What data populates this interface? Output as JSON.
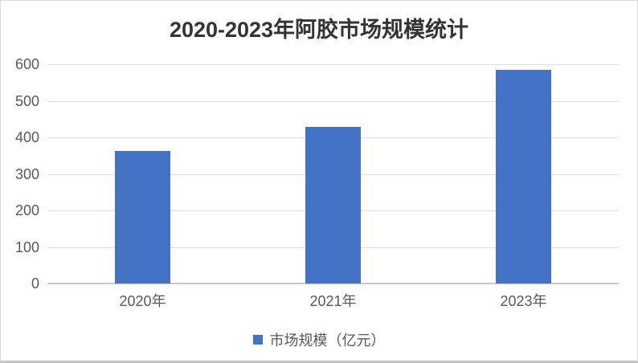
{
  "chart_data": {
    "type": "bar",
    "title": "2020-2023年阿胶市场规模统计",
    "categories": [
      "2020年",
      "2021年",
      "2023年"
    ],
    "series": [
      {
        "name": "市场规模（亿元）",
        "values": [
          363,
          428,
          585
        ]
      }
    ],
    "xlabel": "",
    "ylabel": "",
    "ylim": [
      0,
      600
    ],
    "ytick_step": 100,
    "yticks": [
      0,
      100,
      200,
      300,
      400,
      500,
      600
    ],
    "grid": "horizontal",
    "legend_position": "bottom",
    "legend": [
      "市场规模（亿元）"
    ],
    "colors": {
      "bar": "#4472C4",
      "gridline": "#e0e0e0",
      "axis_line": "#c9c9c9",
      "tick_label": "#595959",
      "title": "#333333",
      "background": "#ffffff",
      "frame_border": "#d9d9d9"
    }
  }
}
